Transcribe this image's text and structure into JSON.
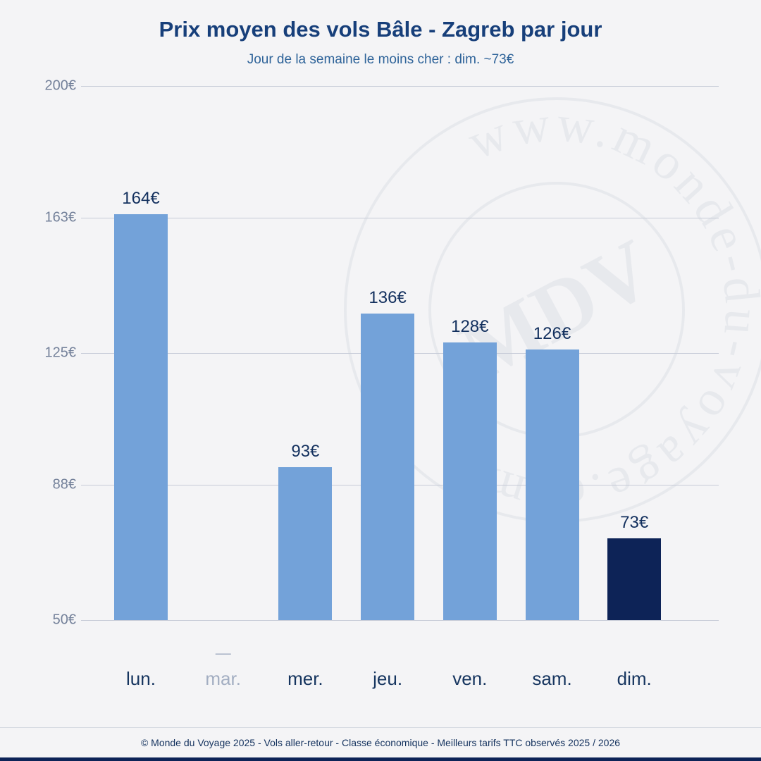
{
  "title": "Prix moyen des vols Bâle - Zagreb par jour",
  "subtitle": "Jour de la semaine le moins cher : dim. ~73€",
  "footer": "© Monde du Voyage 2025 - Vols aller-retour - Classe économique - Meilleurs tarifs TTC observés 2025 / 2026",
  "watermark": {
    "circle_text": "www.monde-du-voyage.com",
    "center_text": "MDV"
  },
  "colors": {
    "background": "#f4f4f6",
    "bar": "#73a2d9",
    "bar_min": "#0d2357",
    "title": "#173f7a",
    "subtitle": "#2e6399",
    "gridline": "#c6cbd7",
    "tick_label": "#74819a",
    "value_label": "#13305e",
    "muted_label": "#a3aec2",
    "footer": "#14325e"
  },
  "chart_data": {
    "type": "bar",
    "title": "Prix moyen des vols Bâle - Zagreb par jour",
    "subtitle": "Jour de la semaine le moins cher : dim. ~73€",
    "categories": [
      "lun.",
      "mar.",
      "mer.",
      "jeu.",
      "ven.",
      "sam.",
      "dim."
    ],
    "values": [
      164,
      null,
      93,
      136,
      128,
      126,
      73
    ],
    "value_labels": [
      "164€",
      "—",
      "93€",
      "136€",
      "128€",
      "126€",
      "73€"
    ],
    "xlabel": "",
    "ylabel": "",
    "ylim": [
      50,
      200
    ],
    "yticks": [
      200,
      163,
      125,
      88,
      50
    ],
    "ytick_labels": [
      "200€",
      "163€",
      "125€",
      "88€",
      "50€"
    ],
    "grid": true,
    "legend": false,
    "min_index": 6,
    "missing_index": 1,
    "currency": "€"
  }
}
